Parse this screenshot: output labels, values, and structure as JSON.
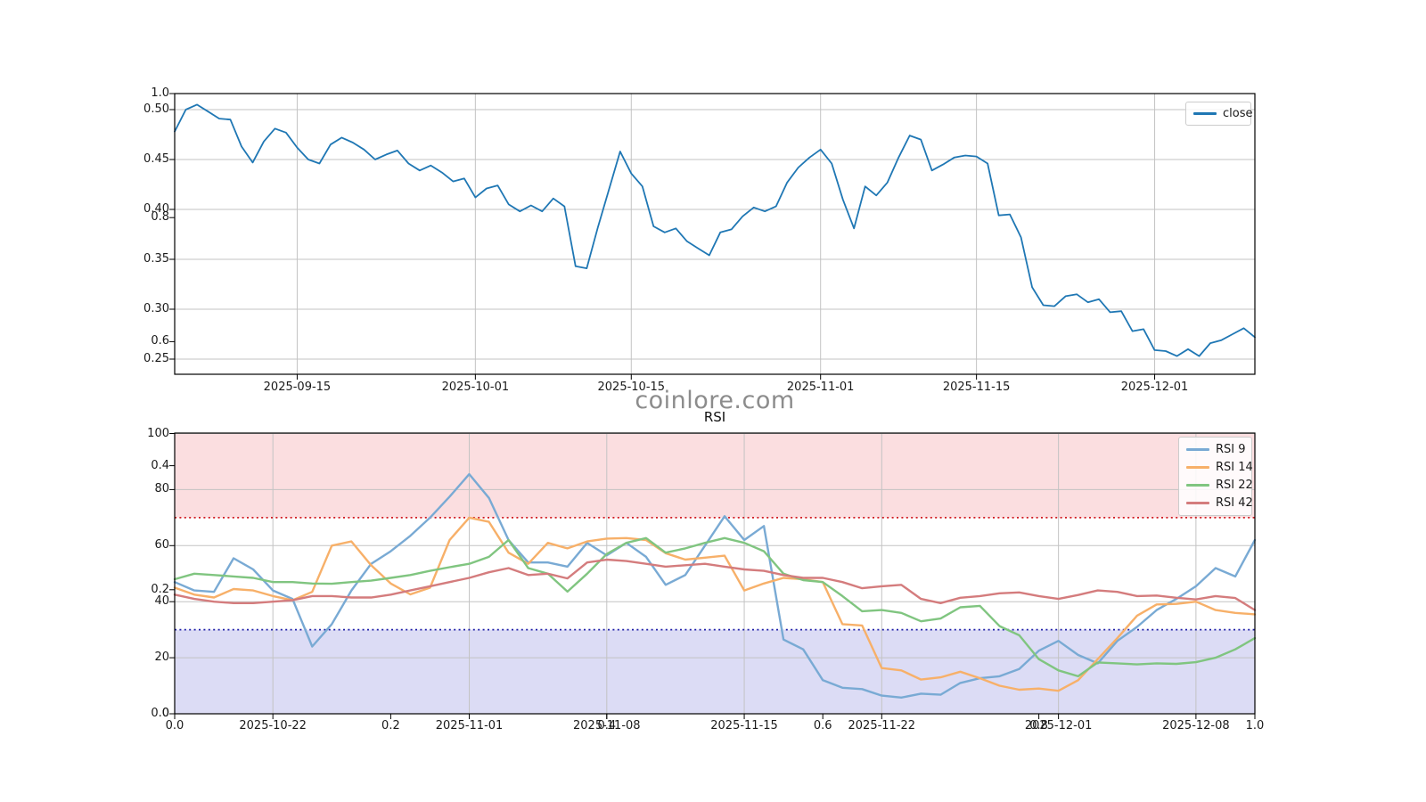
{
  "watermark": "coinlore.com",
  "figure": {
    "background": "#ffffff",
    "grid_color": "#c3c3c3",
    "spine_color": "#000000",
    "tick_text_color": "#1a1a1a"
  },
  "overlay_axis": {
    "x_tick_labels": [
      "0.0",
      "0.2",
      "0.4",
      "0.6",
      "0.8",
      "1.0"
    ],
    "y_tick_labels": [
      "1.0",
      "0.8",
      "0.6",
      "0.4",
      "0.2",
      "0.0"
    ],
    "x_tick_values": [
      0.0,
      0.2,
      0.4,
      0.6,
      0.8,
      1.0
    ],
    "y_tick_values": [
      1.0,
      0.8,
      0.6,
      0.4,
      0.2,
      0.0
    ]
  },
  "chart_data": [
    {
      "id": "price",
      "type": "line",
      "title": "",
      "grid": true,
      "legend": [
        {
          "label": "close",
          "color": "#1f77b4"
        }
      ],
      "x_start": "2025-09-04",
      "x_end": "2025-12-10",
      "x_freq": "daily",
      "x_tick_labels": [
        "2025-09-15",
        "2025-10-01",
        "2025-10-15",
        "2025-11-01",
        "2025-11-15",
        "2025-12-01"
      ],
      "x_tick_day_index": [
        11,
        27,
        41,
        58,
        72,
        88
      ],
      "y_tick_labels": [
        "0.25",
        "0.30",
        "0.35",
        "0.40",
        "0.45",
        "0.50"
      ],
      "y_tick_values": [
        0.25,
        0.3,
        0.35,
        0.4,
        0.45,
        0.5
      ],
      "ylim": [
        0.235,
        0.516
      ],
      "series": [
        {
          "name": "close",
          "color": "#1f77b4",
          "values": [
            0.478,
            0.5,
            0.505,
            0.498,
            0.491,
            0.49,
            0.463,
            0.447,
            0.468,
            0.481,
            0.477,
            0.462,
            0.45,
            0.446,
            0.465,
            0.472,
            0.467,
            0.46,
            0.45,
            0.455,
            0.459,
            0.446,
            0.439,
            0.444,
            0.437,
            0.428,
            0.431,
            0.412,
            0.421,
            0.424,
            0.405,
            0.398,
            0.404,
            0.398,
            0.411,
            0.403,
            0.343,
            0.341,
            0.382,
            0.42,
            0.458,
            0.436,
            0.423,
            0.383,
            0.377,
            0.381,
            0.368,
            0.361,
            0.354,
            0.377,
            0.38,
            0.393,
            0.402,
            0.398,
            0.403,
            0.427,
            0.442,
            0.452,
            0.46,
            0.446,
            0.41,
            0.381,
            0.423,
            0.414,
            0.427,
            0.452,
            0.474,
            0.47,
            0.439,
            0.445,
            0.452,
            0.454,
            0.453,
            0.446,
            0.394,
            0.395,
            0.372,
            0.322,
            0.304,
            0.303,
            0.313,
            0.315,
            0.307,
            0.31,
            0.297,
            0.298,
            0.278,
            0.28,
            0.259,
            0.258,
            0.253,
            0.26,
            0.253,
            0.266,
            0.269,
            0.275,
            0.281,
            0.272
          ]
        }
      ]
    },
    {
      "id": "rsi",
      "type": "line",
      "title": "RSI",
      "grid": true,
      "legend": [
        {
          "label": "RSI 9",
          "color": "#79aad4"
        },
        {
          "label": "RSI 14",
          "color": "#f7b069"
        },
        {
          "label": "RSI 22",
          "color": "#80c580"
        },
        {
          "label": "RSI 42",
          "color": "#d47c7d"
        }
      ],
      "x_start": "2025-10-17",
      "x_end": "2025-12-11",
      "x_freq": "daily",
      "x_tick_labels": [
        "2025-10-22",
        "2025-11-01",
        "2025-11-08",
        "2025-11-15",
        "2025-11-22",
        "2025-12-01",
        "2025-12-08"
      ],
      "x_tick_day_index": [
        5,
        15,
        22,
        29,
        36,
        45,
        52
      ],
      "y_tick_labels": [
        "0",
        "20",
        "40",
        "60",
        "80",
        "100"
      ],
      "y_tick_values": [
        0,
        20,
        40,
        60,
        80,
        100
      ],
      "ylim": [
        0,
        100
      ],
      "bands": [
        {
          "from": 70,
          "to": 100,
          "color": "#fbdee0",
          "meaning": "overbought zone"
        },
        {
          "from": 0,
          "to": 30,
          "color": "#dcdcf5",
          "meaning": "oversold zone"
        }
      ],
      "hlines": [
        {
          "value": 70,
          "color": "#d01a21",
          "style": "dotted",
          "meaning": "overbought level"
        },
        {
          "value": 30,
          "color": "#2020a8",
          "style": "dotted",
          "meaning": "oversold level"
        }
      ],
      "series": [
        {
          "name": "RSI 9",
          "color": "#79aad4",
          "values": [
            47,
            44,
            43.5,
            55.5,
            51.5,
            44,
            41,
            24,
            32,
            44,
            53.5,
            58,
            63.5,
            70,
            77.5,
            85.5,
            77,
            62,
            54,
            54,
            52.5,
            61,
            56.5,
            61,
            56,
            46,
            49.5,
            60,
            70.5,
            62,
            67,
            26.5,
            23,
            12,
            9.3,
            8.8,
            6.5,
            5.8,
            7.2,
            6.8,
            11,
            12.7,
            13.4,
            16,
            22.5,
            26,
            21,
            18,
            26,
            31,
            37,
            41,
            45.5,
            52,
            49,
            62
          ]
        },
        {
          "name": "RSI 14",
          "color": "#f7b069",
          "values": [
            45,
            42.5,
            41.5,
            44.5,
            44,
            42,
            40.5,
            43.5,
            60,
            61.5,
            53,
            46.5,
            42.6,
            45,
            62,
            70,
            68.5,
            57.5,
            53.5,
            61,
            59,
            61.5,
            62.5,
            62.7,
            62,
            57.3,
            55,
            55.7,
            56.4,
            44,
            46.5,
            48.5,
            48,
            47,
            32,
            31.5,
            16.3,
            15.5,
            12.2,
            13,
            15,
            12.7,
            10,
            8.6,
            9,
            8.2,
            12,
            19.5,
            27,
            35,
            39,
            39.2,
            40,
            37,
            36,
            35.5
          ]
        },
        {
          "name": "RSI 22",
          "color": "#80c580",
          "values": [
            48,
            50,
            49.5,
            49,
            48.5,
            47,
            47,
            46.5,
            46.4,
            47,
            47.5,
            48.5,
            49.5,
            51,
            52.3,
            53.5,
            56,
            62,
            52,
            50,
            43.6,
            50,
            57,
            61,
            62.7,
            57.5,
            59,
            61,
            62.7,
            61,
            58,
            50,
            47.7,
            47,
            42,
            36.6,
            37,
            36,
            33,
            34,
            38,
            38.5,
            31.3,
            28,
            19.5,
            15.5,
            13.4,
            18.3,
            18,
            17.6,
            18,
            17.8,
            18.4,
            20,
            23,
            27
          ]
        },
        {
          "name": "RSI 42",
          "color": "#d47c7d",
          "values": [
            42.5,
            41,
            40,
            39.5,
            39.5,
            40,
            40.5,
            42,
            42,
            41.5,
            41.5,
            42.5,
            44,
            45.5,
            47,
            48.5,
            50.5,
            52,
            49.5,
            50,
            48.3,
            54,
            55,
            54.5,
            53.5,
            52.5,
            53,
            53.5,
            52.5,
            51.5,
            51,
            49.5,
            48.5,
            48.5,
            47,
            44.8,
            45.5,
            46,
            41,
            39.5,
            41.4,
            42,
            43,
            43.3,
            42,
            41,
            42.4,
            44,
            43.5,
            42,
            42.2,
            41.4,
            40.8,
            42,
            41.3,
            37
          ]
        }
      ]
    }
  ]
}
